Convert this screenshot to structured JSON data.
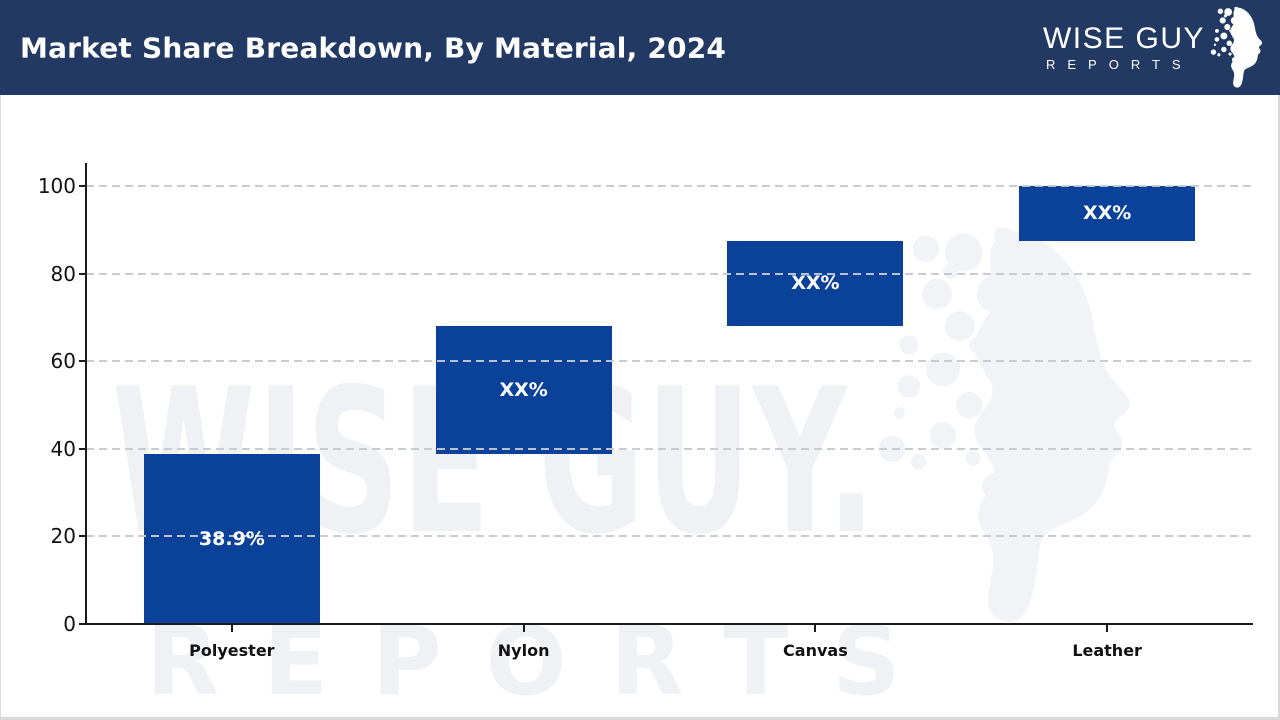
{
  "header": {
    "title": "Market Share Breakdown, By Material, 2024",
    "logo": {
      "wordmark": "WISE GUY",
      "subtext": "REPORTS"
    }
  },
  "watermark": {
    "wordmark": "WISE GUY.",
    "subtext": "REPORTS"
  },
  "chart_data": {
    "type": "bar",
    "subtype": "stacked-waterfall (floating segments summing to 100%)",
    "title": "Market Share Breakdown, By Material, 2024",
    "categories": [
      "Polyester",
      "Nylon",
      "Canvas",
      "Leather"
    ],
    "series": [
      {
        "name": "Market share (%)",
        "segments": [
          {
            "category": "Polyester",
            "start": 0,
            "end": 38.9,
            "label": "38.9%"
          },
          {
            "category": "Nylon",
            "start": 38.9,
            "end": 68.0,
            "label": "XX%"
          },
          {
            "category": "Canvas",
            "start": 68.0,
            "end": 87.5,
            "label": "XX%"
          },
          {
            "category": "Leather",
            "start": 87.5,
            "end": 100.0,
            "label": "XX%"
          }
        ]
      }
    ],
    "yticks": [
      0,
      20,
      40,
      60,
      80,
      100
    ],
    "ylim": [
      0,
      105
    ],
    "xlabel": "",
    "ylabel": "",
    "grid": "horizontal dashed",
    "legend": "none",
    "bar_color": "#0A429A"
  },
  "colors": {
    "header_bg": "#223A63",
    "bar": "#0A429A",
    "grid": "#C6C9D0",
    "axis": "#1A1A1A",
    "watermark": "#EFF1F4",
    "title_text": "#FFFFFF",
    "label_text": "#111111"
  }
}
